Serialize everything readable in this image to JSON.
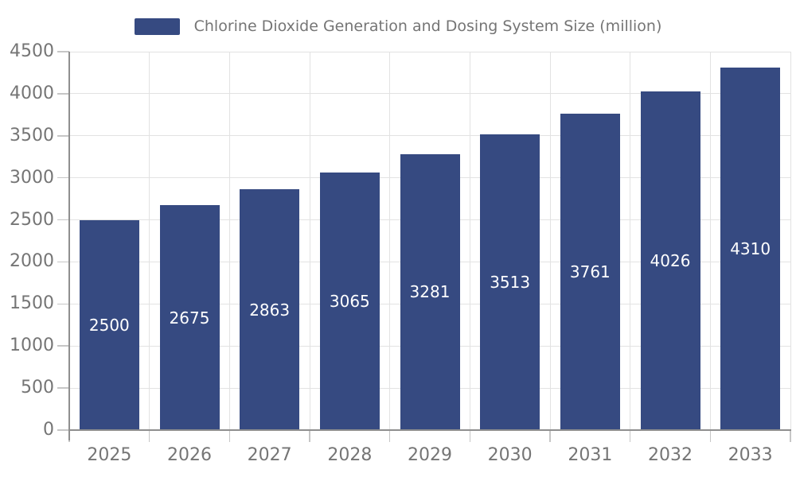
{
  "legend": {
    "label": "Chlorine Dioxide Generation and Dosing System Size (million)"
  },
  "chart_data": {
    "type": "bar",
    "title": "Chlorine Dioxide Generation and Dosing System Size (million)",
    "legend_position": "top",
    "categories": [
      "2025",
      "2026",
      "2027",
      "2028",
      "2029",
      "2030",
      "2031",
      "2032",
      "2033"
    ],
    "series": [
      {
        "name": "Chlorine Dioxide Generation and Dosing System Size (million)",
        "values": [
          2500,
          2675,
          2863,
          3065,
          3281,
          3513,
          3761,
          4026,
          4310
        ]
      }
    ],
    "bar_labels_shown": true,
    "bar_label_position": "center",
    "xlabel": "",
    "ylabel": "",
    "ylim": [
      0,
      4500
    ],
    "yticks": [
      0,
      500,
      1000,
      1500,
      2000,
      2500,
      3000,
      3500,
      4000,
      4500
    ],
    "grid": true,
    "colors": {
      "bar": "#364a81",
      "bar_label": "#ffffff",
      "tick_label": "#757575",
      "legend_text": "#757575",
      "grid": "#e2e2e2",
      "axis": "#8f8f8f",
      "tick": "#c6c6c6"
    }
  }
}
